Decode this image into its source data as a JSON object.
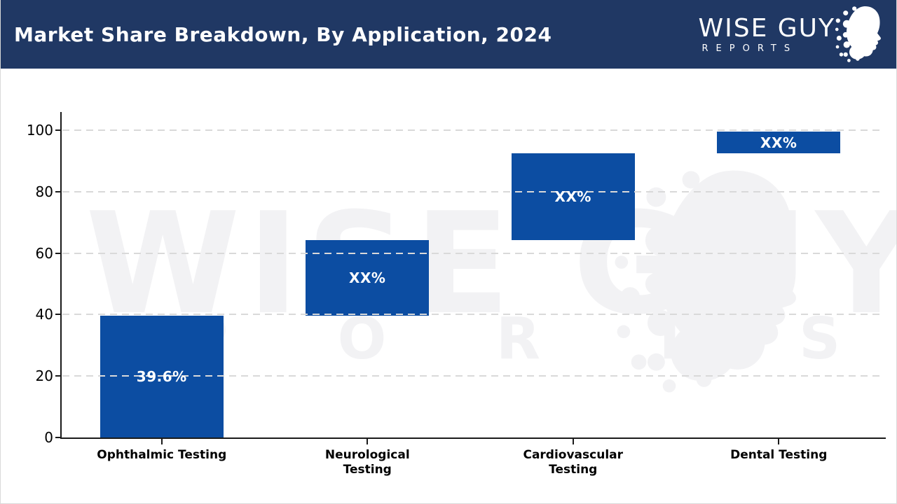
{
  "header": {
    "title": "Market Share Breakdown, By Application, 2024",
    "logo": {
      "line1": "WISE GUY",
      "line2": "REPORTS"
    }
  },
  "watermark": {
    "line1": "WISE GUY",
    "line2": "P O R T S"
  },
  "chart_data": {
    "type": "bar",
    "subtype": "waterfall",
    "title": "Market Share Breakdown, By Application, 2024",
    "xlabel": "",
    "ylabel": "",
    "categories": [
      "Ophthalmic Testing",
      "Neurological Testing",
      "Cardiovascular Testing",
      "Dental Testing"
    ],
    "category_lines": [
      [
        "Ophthalmic Testing"
      ],
      [
        "Neurological",
        "Testing"
      ],
      [
        "Cardiovascular",
        "Testing"
      ],
      [
        "Dental Testing"
      ]
    ],
    "bars": [
      {
        "category": "Ophthalmic Testing",
        "from": 0,
        "to": 39.6,
        "label": "39.6%"
      },
      {
        "category": "Neurological Testing",
        "from": 39.6,
        "to": 64.2,
        "label": "XX%"
      },
      {
        "category": "Cardiovascular Testing",
        "from": 64.2,
        "to": 92.4,
        "label": "XX%"
      },
      {
        "category": "Dental Testing",
        "from": 92.4,
        "to": 99.5,
        "label": "XX%"
      }
    ],
    "ylim": [
      0,
      100
    ],
    "yticks": [
      0,
      20,
      40,
      60,
      80,
      100
    ],
    "grid": "horizontal-dashed",
    "legend": "none",
    "bar_color": "#0c4da2",
    "bar_label_color": "#ffffff",
    "gridline_color": "#d9d9d9",
    "axis_color": "#1a1a1a",
    "header_bg": "#203864",
    "watermark_color": "#f2f2f4"
  }
}
